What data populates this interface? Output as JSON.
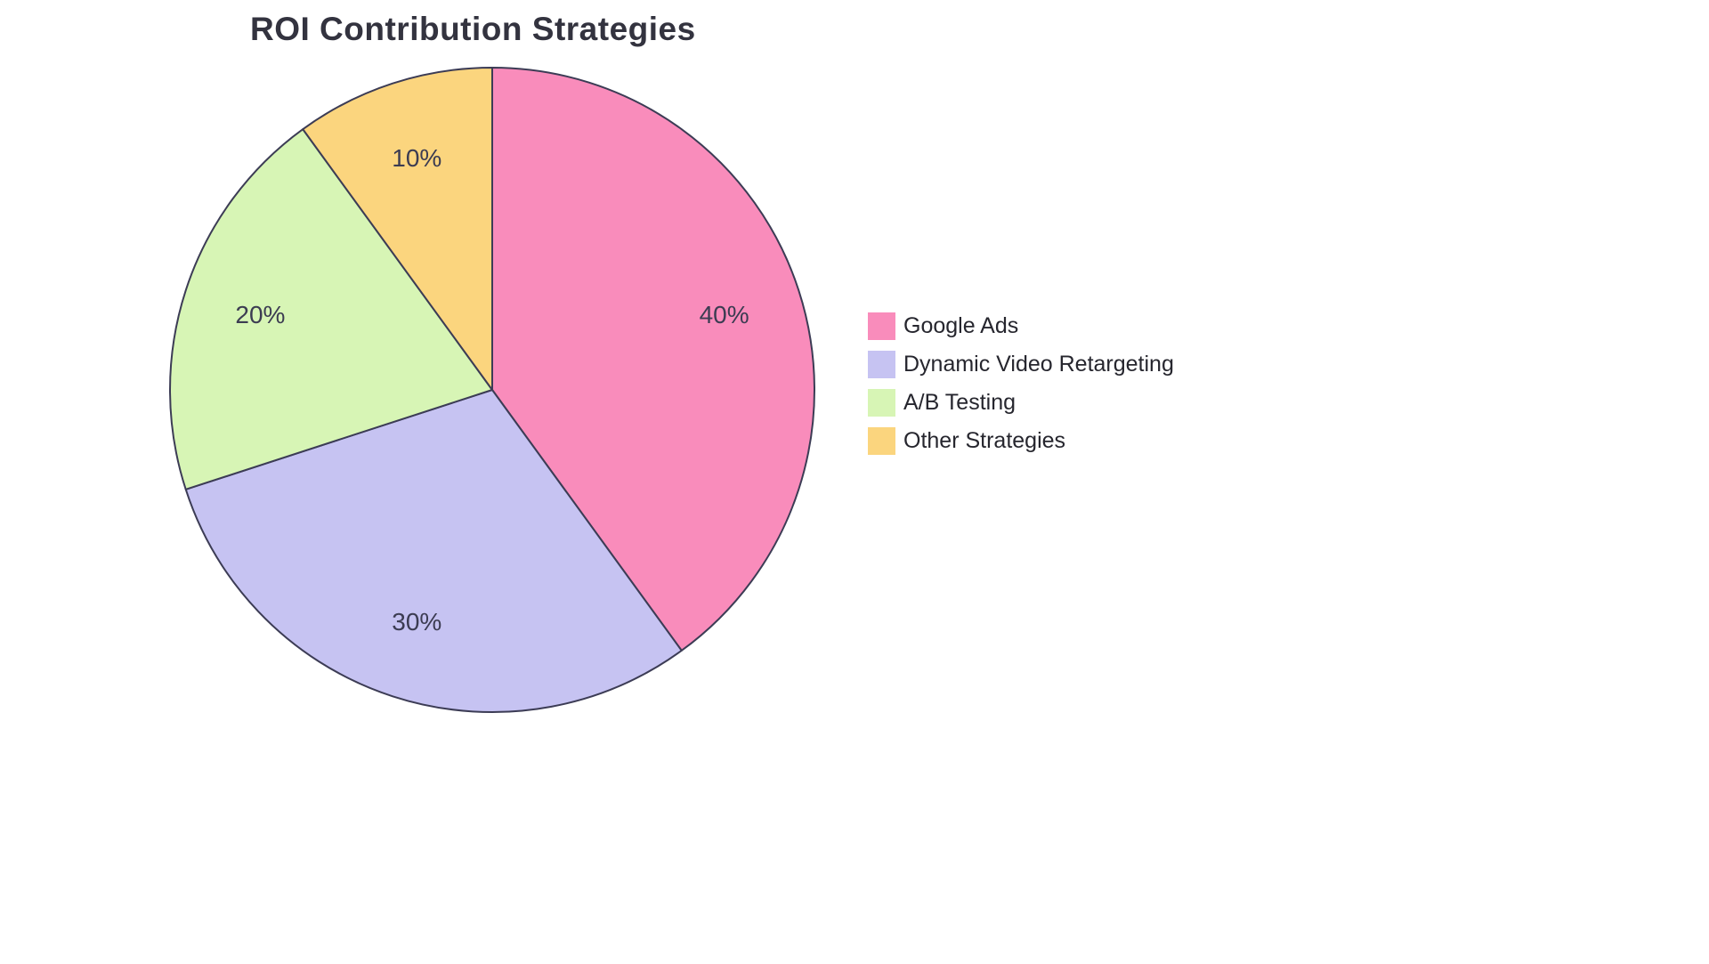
{
  "page": {
    "background_color": "#FFFFFF"
  },
  "chart_data": {
    "type": "pie",
    "title": "ROI Contribution Strategies",
    "labels": [
      "Google Ads",
      "Dynamic Video Retargeting",
      "A/B Testing",
      "Other Strategies"
    ],
    "values": [
      40,
      30,
      20,
      10
    ],
    "percent_labels": [
      "40%",
      "30%",
      "20%",
      "10%"
    ],
    "colors": [
      "#F98CBB",
      "#C6C3F2",
      "#D7F5B5",
      "#FBD57E"
    ],
    "stroke_color": "#3C3C55",
    "slice_label_color": "#3C3C52",
    "title_color": "#33333F",
    "start_angle_deg": -90,
    "direction": "clockwise",
    "legend": {
      "position": "right",
      "entries": [
        "Google Ads",
        "Dynamic Video Retargeting",
        "A/B Testing",
        "Other Strategies"
      ]
    }
  }
}
